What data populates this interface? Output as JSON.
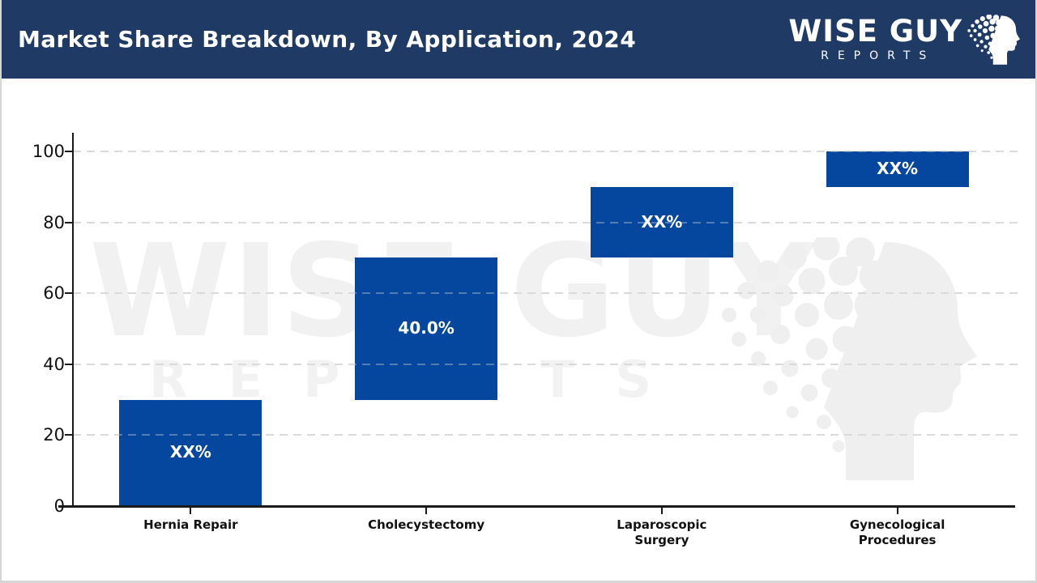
{
  "header": {
    "title": "Market Share Breakdown, By Application, 2024",
    "logo": {
      "line1": "WISE GUY",
      "line2": "REPORTS"
    }
  },
  "watermark": {
    "line1": "WISE GUY",
    "line2": "REPORTS"
  },
  "colors": {
    "header_bg": "#203A66",
    "bar": "#05479E",
    "bar_label": "#FFFFFF",
    "gridline": "#DCDCDC",
    "axis": "#1A1A1A",
    "watermark": "#F1F1F1"
  },
  "chart_data": {
    "type": "bar",
    "variant": "waterfall",
    "title": "Market Share Breakdown, By Application, 2024",
    "categories": [
      "Hernia Repair",
      "Cholecystectomy",
      "Laparoscopic\nSurgery",
      "Gynecological\nProcedures"
    ],
    "segments": [
      {
        "category": "Hernia Repair",
        "from": 0,
        "to": 30,
        "label": "XX%"
      },
      {
        "category": "Cholecystectomy",
        "from": 30,
        "to": 70,
        "label": "40.0%"
      },
      {
        "category": "Laparoscopic Surgery",
        "from": 70,
        "to": 90,
        "label": "XX%"
      },
      {
        "category": "Gynecological Procedures",
        "from": 90,
        "to": 100,
        "label": "XX%"
      }
    ],
    "ylim": [
      0,
      100
    ],
    "yticks": [
      0,
      20,
      40,
      60,
      80,
      100
    ],
    "xlabel": "",
    "ylabel": "",
    "grid": true,
    "grid_style": "dashed",
    "legend": false,
    "bar_color": "#05479E",
    "bar_label_color": "#FFFFFF"
  }
}
